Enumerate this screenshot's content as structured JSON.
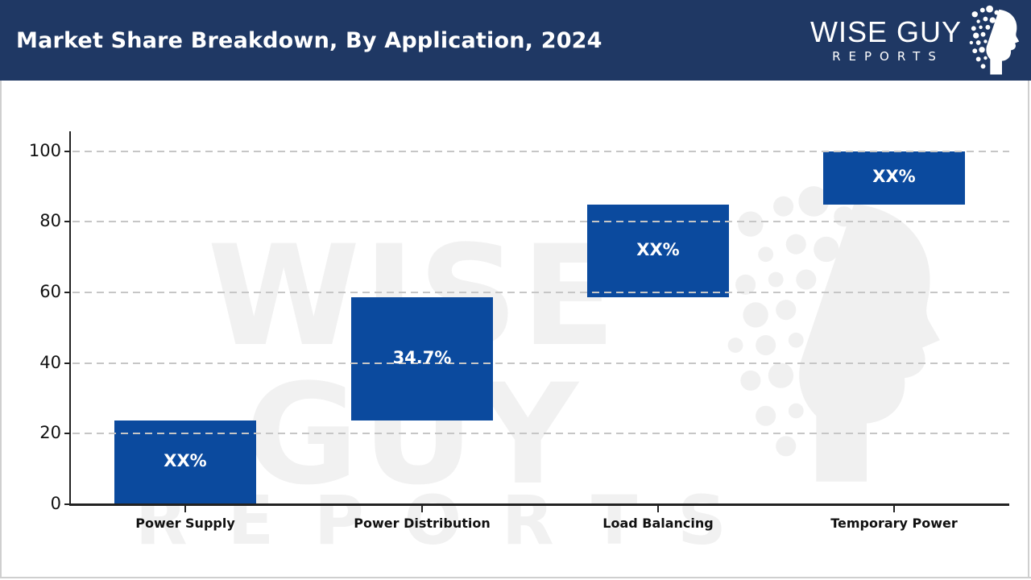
{
  "header": {
    "title": "Market Share Breakdown, By Application, 2024",
    "logo": {
      "line1": "WISE GUY",
      "line2": "REPORTS"
    }
  },
  "watermark": {
    "line1": "WISE GUY",
    "line2": "REPORTS"
  },
  "chart_data": {
    "type": "bar",
    "subtype": "floating-segment-bars (market share stacking cumulatively to 100%)",
    "title": "Market Share Breakdown, By Application, 2024",
    "categories": [
      "Power Supply",
      "Power Distribution",
      "Load Balancing",
      "Temporary Power"
    ],
    "segments": [
      {
        "category": "Power Supply",
        "start": 0,
        "end": 23.8,
        "value_label": "XX%"
      },
      {
        "category": "Power Distribution",
        "start": 23.8,
        "end": 58.5,
        "value_label": "34.7%"
      },
      {
        "category": "Load Balancing",
        "start": 58.5,
        "end": 84.9,
        "value_label": "XX%"
      },
      {
        "category": "Temporary Power",
        "start": 84.9,
        "end": 100,
        "value_label": "XX%"
      }
    ],
    "ylim": [
      0,
      100
    ],
    "yticks": [
      0,
      20,
      40,
      60,
      80,
      100
    ],
    "grid": "horizontal-dashed-above-bars",
    "legend": "none",
    "colors": {
      "bar": "#0b4a9e",
      "header_background": "#1f3864",
      "gridline": "#c6c6c6",
      "axis": "#222222",
      "watermark": "#f0f0f0"
    }
  }
}
